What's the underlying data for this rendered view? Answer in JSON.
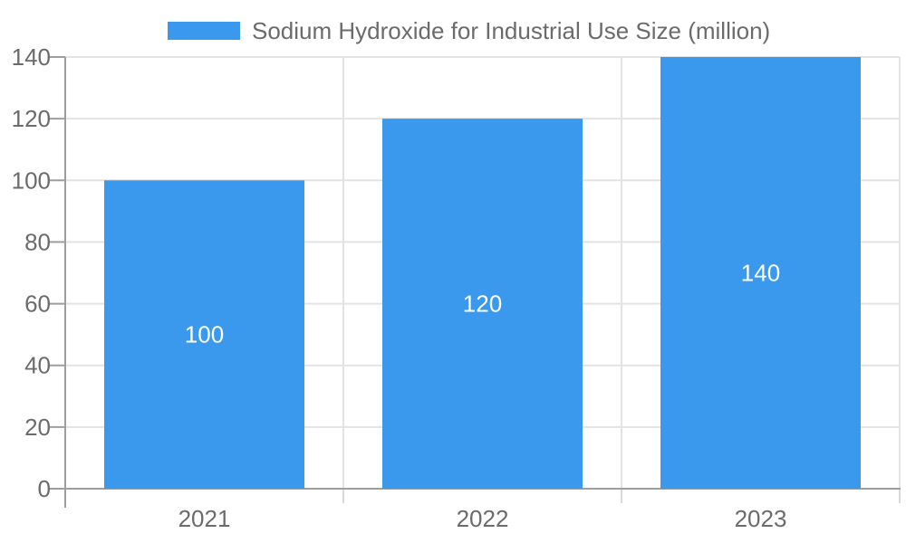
{
  "legend": {
    "series_label": "Sodium Hydroxide for Industrial Use Size (million)"
  },
  "chart_data": {
    "type": "bar",
    "title": "Sodium Hydroxide for Industrial Use Size (million)",
    "categories": [
      "2021",
      "2022",
      "2023"
    ],
    "series": [
      {
        "name": "Sodium Hydroxide for Industrial Use Size (million)",
        "values": [
          100,
          120,
          140
        ]
      }
    ],
    "values": [
      100,
      120,
      140
    ],
    "value_labels": [
      "100",
      "120",
      "140"
    ],
    "xlabel": "",
    "ylabel": "",
    "ylim": [
      0,
      140
    ],
    "yticks": [
      0,
      20,
      40,
      60,
      80,
      100,
      120,
      140
    ],
    "grid": true,
    "legend_position": "top",
    "colors": {
      "bar": "#3a99ec",
      "axis_line": "#9e9e9e",
      "gridline": "#e3e3e3",
      "boundary_tick": "#d9d9d9",
      "tick_label": "#6b6b6b",
      "category_label": "#6b6b6b",
      "title": "#6b6b6b",
      "value_label": "#ffffff",
      "background": "#ffffff"
    }
  }
}
